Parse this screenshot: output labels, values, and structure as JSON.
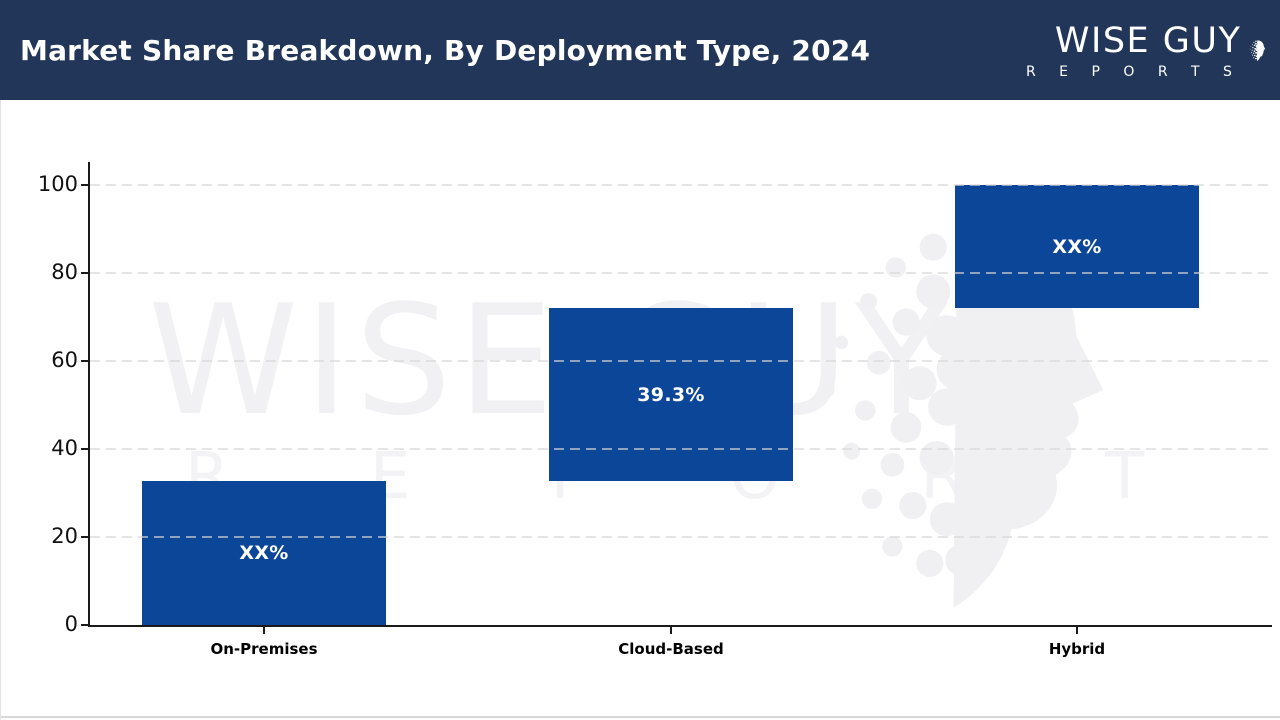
{
  "header": {
    "title": "Market Share Breakdown, By Deployment Type, 2024",
    "logo": {
      "line1": "WISE GUY",
      "line2": "R E P O R T S"
    }
  },
  "watermark": {
    "line1": "WISE GUY",
    "line2": "R E P O R T S"
  },
  "chart_data": {
    "type": "bar",
    "subtype": "waterfall",
    "title": "Market Share Breakdown, By Deployment Type, 2024",
    "categories": [
      "On-Premises",
      "Cloud-Based",
      "Hybrid"
    ],
    "series": [
      {
        "name": "Market Share",
        "segments": [
          {
            "category": "On-Premises",
            "start": 0,
            "end": 32.7,
            "label": "XX%"
          },
          {
            "category": "Cloud-Based",
            "start": 32.7,
            "end": 72.0,
            "label": "39.3%"
          },
          {
            "category": "Hybrid",
            "start": 72.0,
            "end": 100.0,
            "label": "XX%"
          }
        ]
      }
    ],
    "ylim": [
      0,
      100
    ],
    "yticks": [
      0,
      20,
      40,
      60,
      80,
      100
    ],
    "xlabel": "",
    "ylabel": "",
    "grid": "dashed-horizontal",
    "legend": "none",
    "bar_color": "#0b4699",
    "bar_label_color": "#ffffff"
  },
  "colors": {
    "header_bg": "#223659",
    "bar": "#0b4699",
    "axis": "#1a1a1a",
    "gridline": "#dddddd",
    "watermark": "#f1f1f3"
  }
}
